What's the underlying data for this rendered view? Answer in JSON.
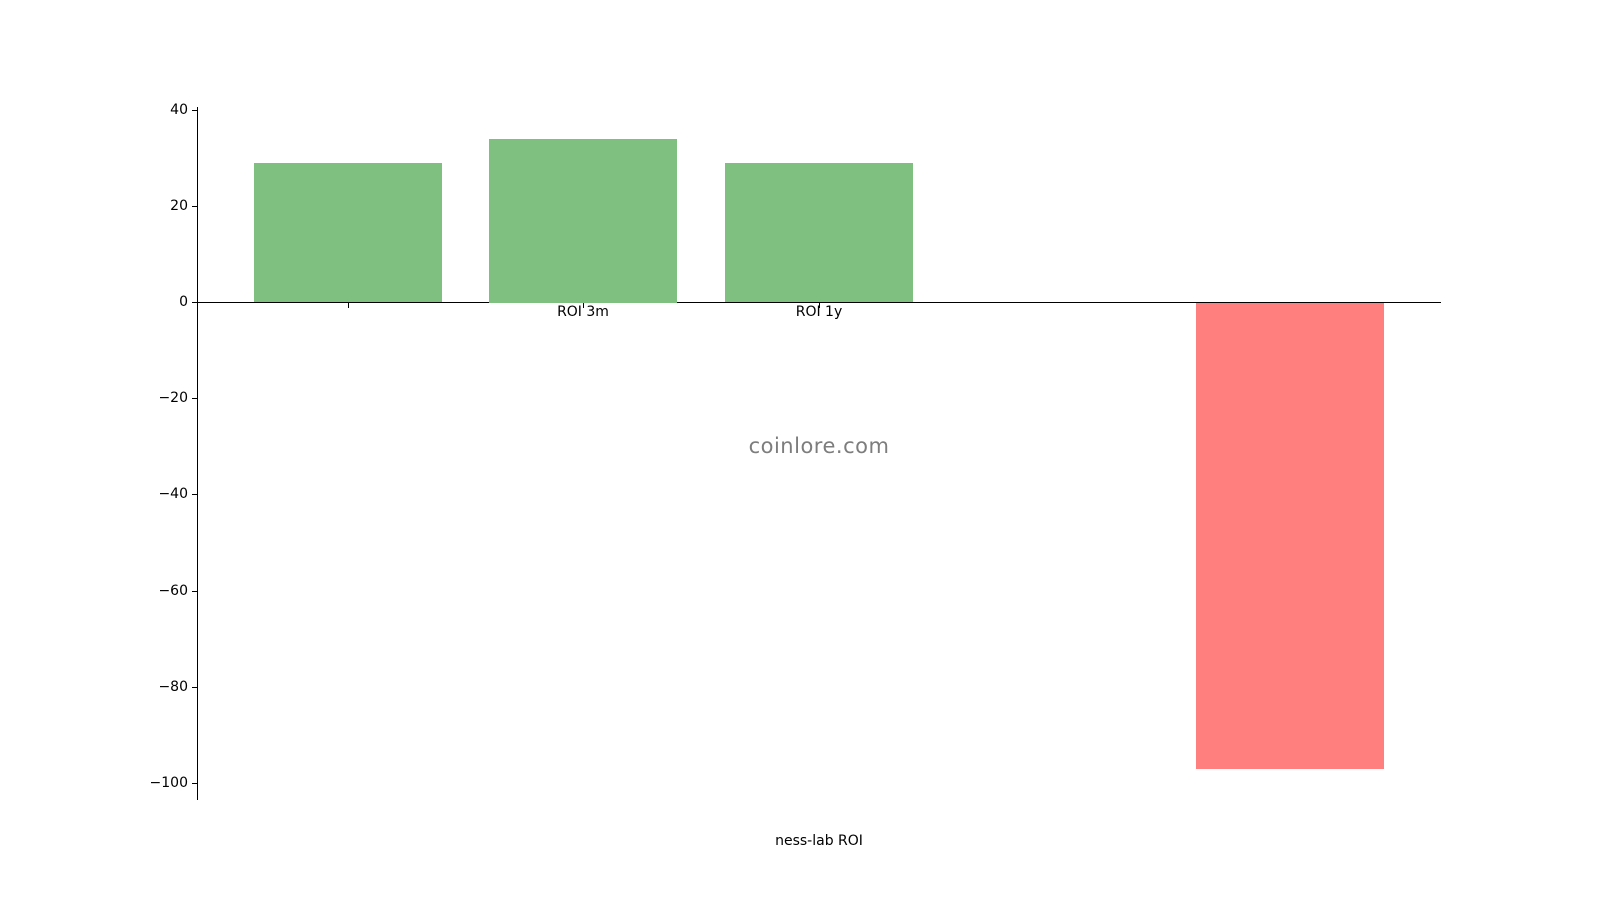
{
  "window": {
    "background": "#ffffff"
  },
  "chart_data": {
    "type": "bar",
    "title": "",
    "xlabel": "ness-lab ROI",
    "ylabel": "",
    "watermark": "coinlore.com",
    "categories": [
      "",
      "ROI 3m",
      "ROI 1y",
      "",
      ""
    ],
    "values": [
      29,
      34,
      29,
      0,
      -97
    ],
    "bar_colors": [
      "#7fbf7f",
      "#7fbf7f",
      "#7fbf7f",
      "#7fbf7f",
      "#ff7f7f"
    ],
    "show_x_tick": [
      true,
      true,
      true,
      false,
      false
    ],
    "yticks": [
      40,
      20,
      0,
      -20,
      -40,
      -60,
      -80,
      -100
    ],
    "ylim": [
      -103.55,
      40.55
    ],
    "xlim": [
      -0.64,
      4.64
    ],
    "bar_width": 0.8,
    "grid": false,
    "legend": "none",
    "positive_color": "#7fbf7f",
    "negative_color": "#ff7f7f",
    "axis_color": "#000000",
    "tick_label_color": "#000000",
    "watermark_color": "#7d7d7d"
  }
}
